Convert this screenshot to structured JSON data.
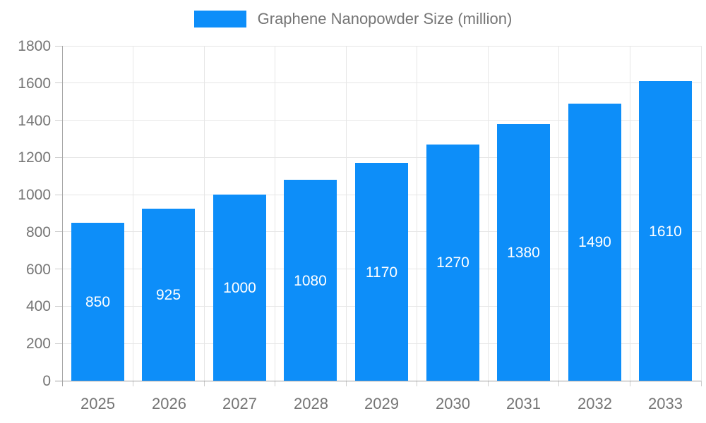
{
  "chart_data": {
    "type": "bar",
    "title": "Graphene Nanopowder Size (million)",
    "legend_position": "top",
    "categories": [
      "2025",
      "2026",
      "2027",
      "2028",
      "2029",
      "2030",
      "2031",
      "2032",
      "2033"
    ],
    "values": [
      850,
      925,
      1000,
      1080,
      1170,
      1270,
      1380,
      1490,
      1610
    ],
    "value_labels": [
      "850",
      "925",
      "1000",
      "1080",
      "1170",
      "1270",
      "1380",
      "1490",
      "1610"
    ],
    "xlabel": "",
    "ylabel": "",
    "ylim": [
      0,
      1800
    ],
    "ytick_step": 200,
    "y_ticks": [
      "0",
      "200",
      "400",
      "600",
      "800",
      "1000",
      "1200",
      "1400",
      "1600",
      "1800"
    ],
    "grid": true,
    "colors": {
      "bar": "#0d8ef9",
      "axis_text": "#757575",
      "gridline": "#e6e6e6",
      "tick": "#cccccc",
      "axis_line": "#a6a6a6",
      "baseline": "#9e9e9e",
      "bar_label_text": "#ffffff",
      "background": "#ffffff"
    }
  }
}
